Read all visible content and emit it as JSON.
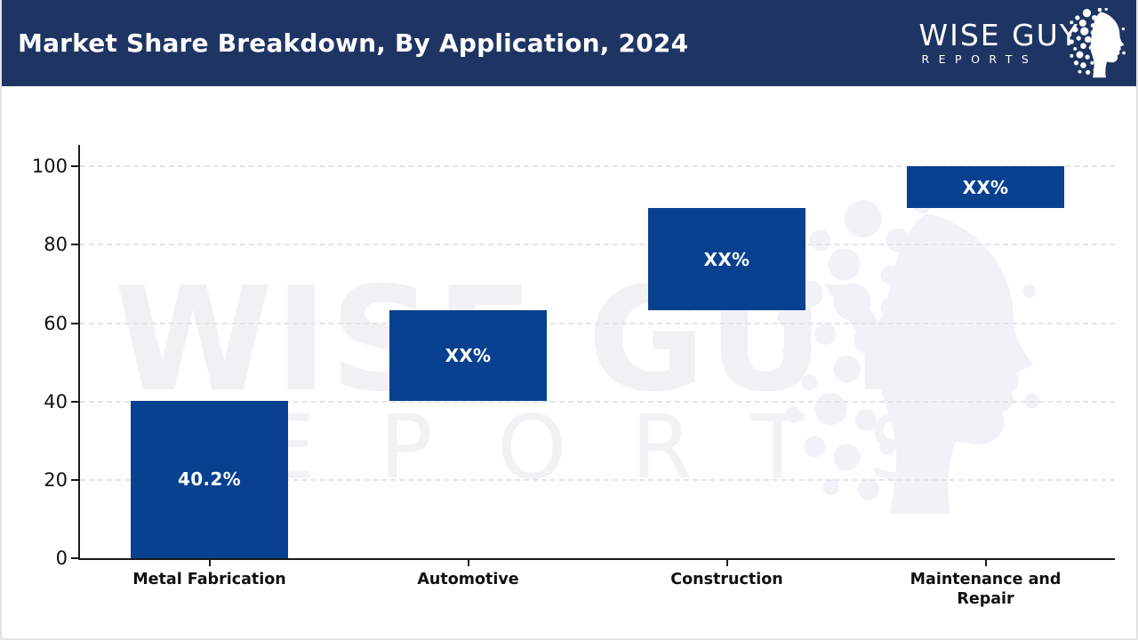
{
  "header": {
    "title": "Market Share Breakdown, By Application, 2024"
  },
  "logo": {
    "line1": "WISE GUY",
    "line2": "REPORTS"
  },
  "watermark": {
    "line1": "WISE GUY",
    "line2": "REPORTS"
  },
  "chart_data": {
    "type": "bar",
    "subtype": "floating-waterfall",
    "title": "Market Share Breakdown, By Application, 2024",
    "categories": [
      "Metal Fabrication",
      "Automotive",
      "Construction",
      "Maintenance and Repair"
    ],
    "segments": [
      {
        "category": "Metal Fabrication",
        "start": 0,
        "end": 40.2,
        "label": "40.2%"
      },
      {
        "category": "Automotive",
        "start": 40.2,
        "end": 63.3,
        "label": "XX%"
      },
      {
        "category": "Construction",
        "start": 63.3,
        "end": 89.3,
        "label": "XX%"
      },
      {
        "category": "Maintenance and Repair",
        "start": 89.3,
        "end": 100,
        "label": "XX%"
      }
    ],
    "xlabel": "",
    "ylabel": "",
    "yticks": [
      0,
      20,
      40,
      60,
      80,
      100
    ],
    "ylim": [
      0,
      105.5
    ],
    "grid": "horizontal-dashed",
    "legend": "none",
    "bar_color": "#07418f",
    "bar_label_color": "#ffffff",
    "axis_color": "#1a1a1a",
    "grid_color": "#e4e4e6",
    "header_color": "#1e3563",
    "watermark_color": "#f1f1f4"
  }
}
